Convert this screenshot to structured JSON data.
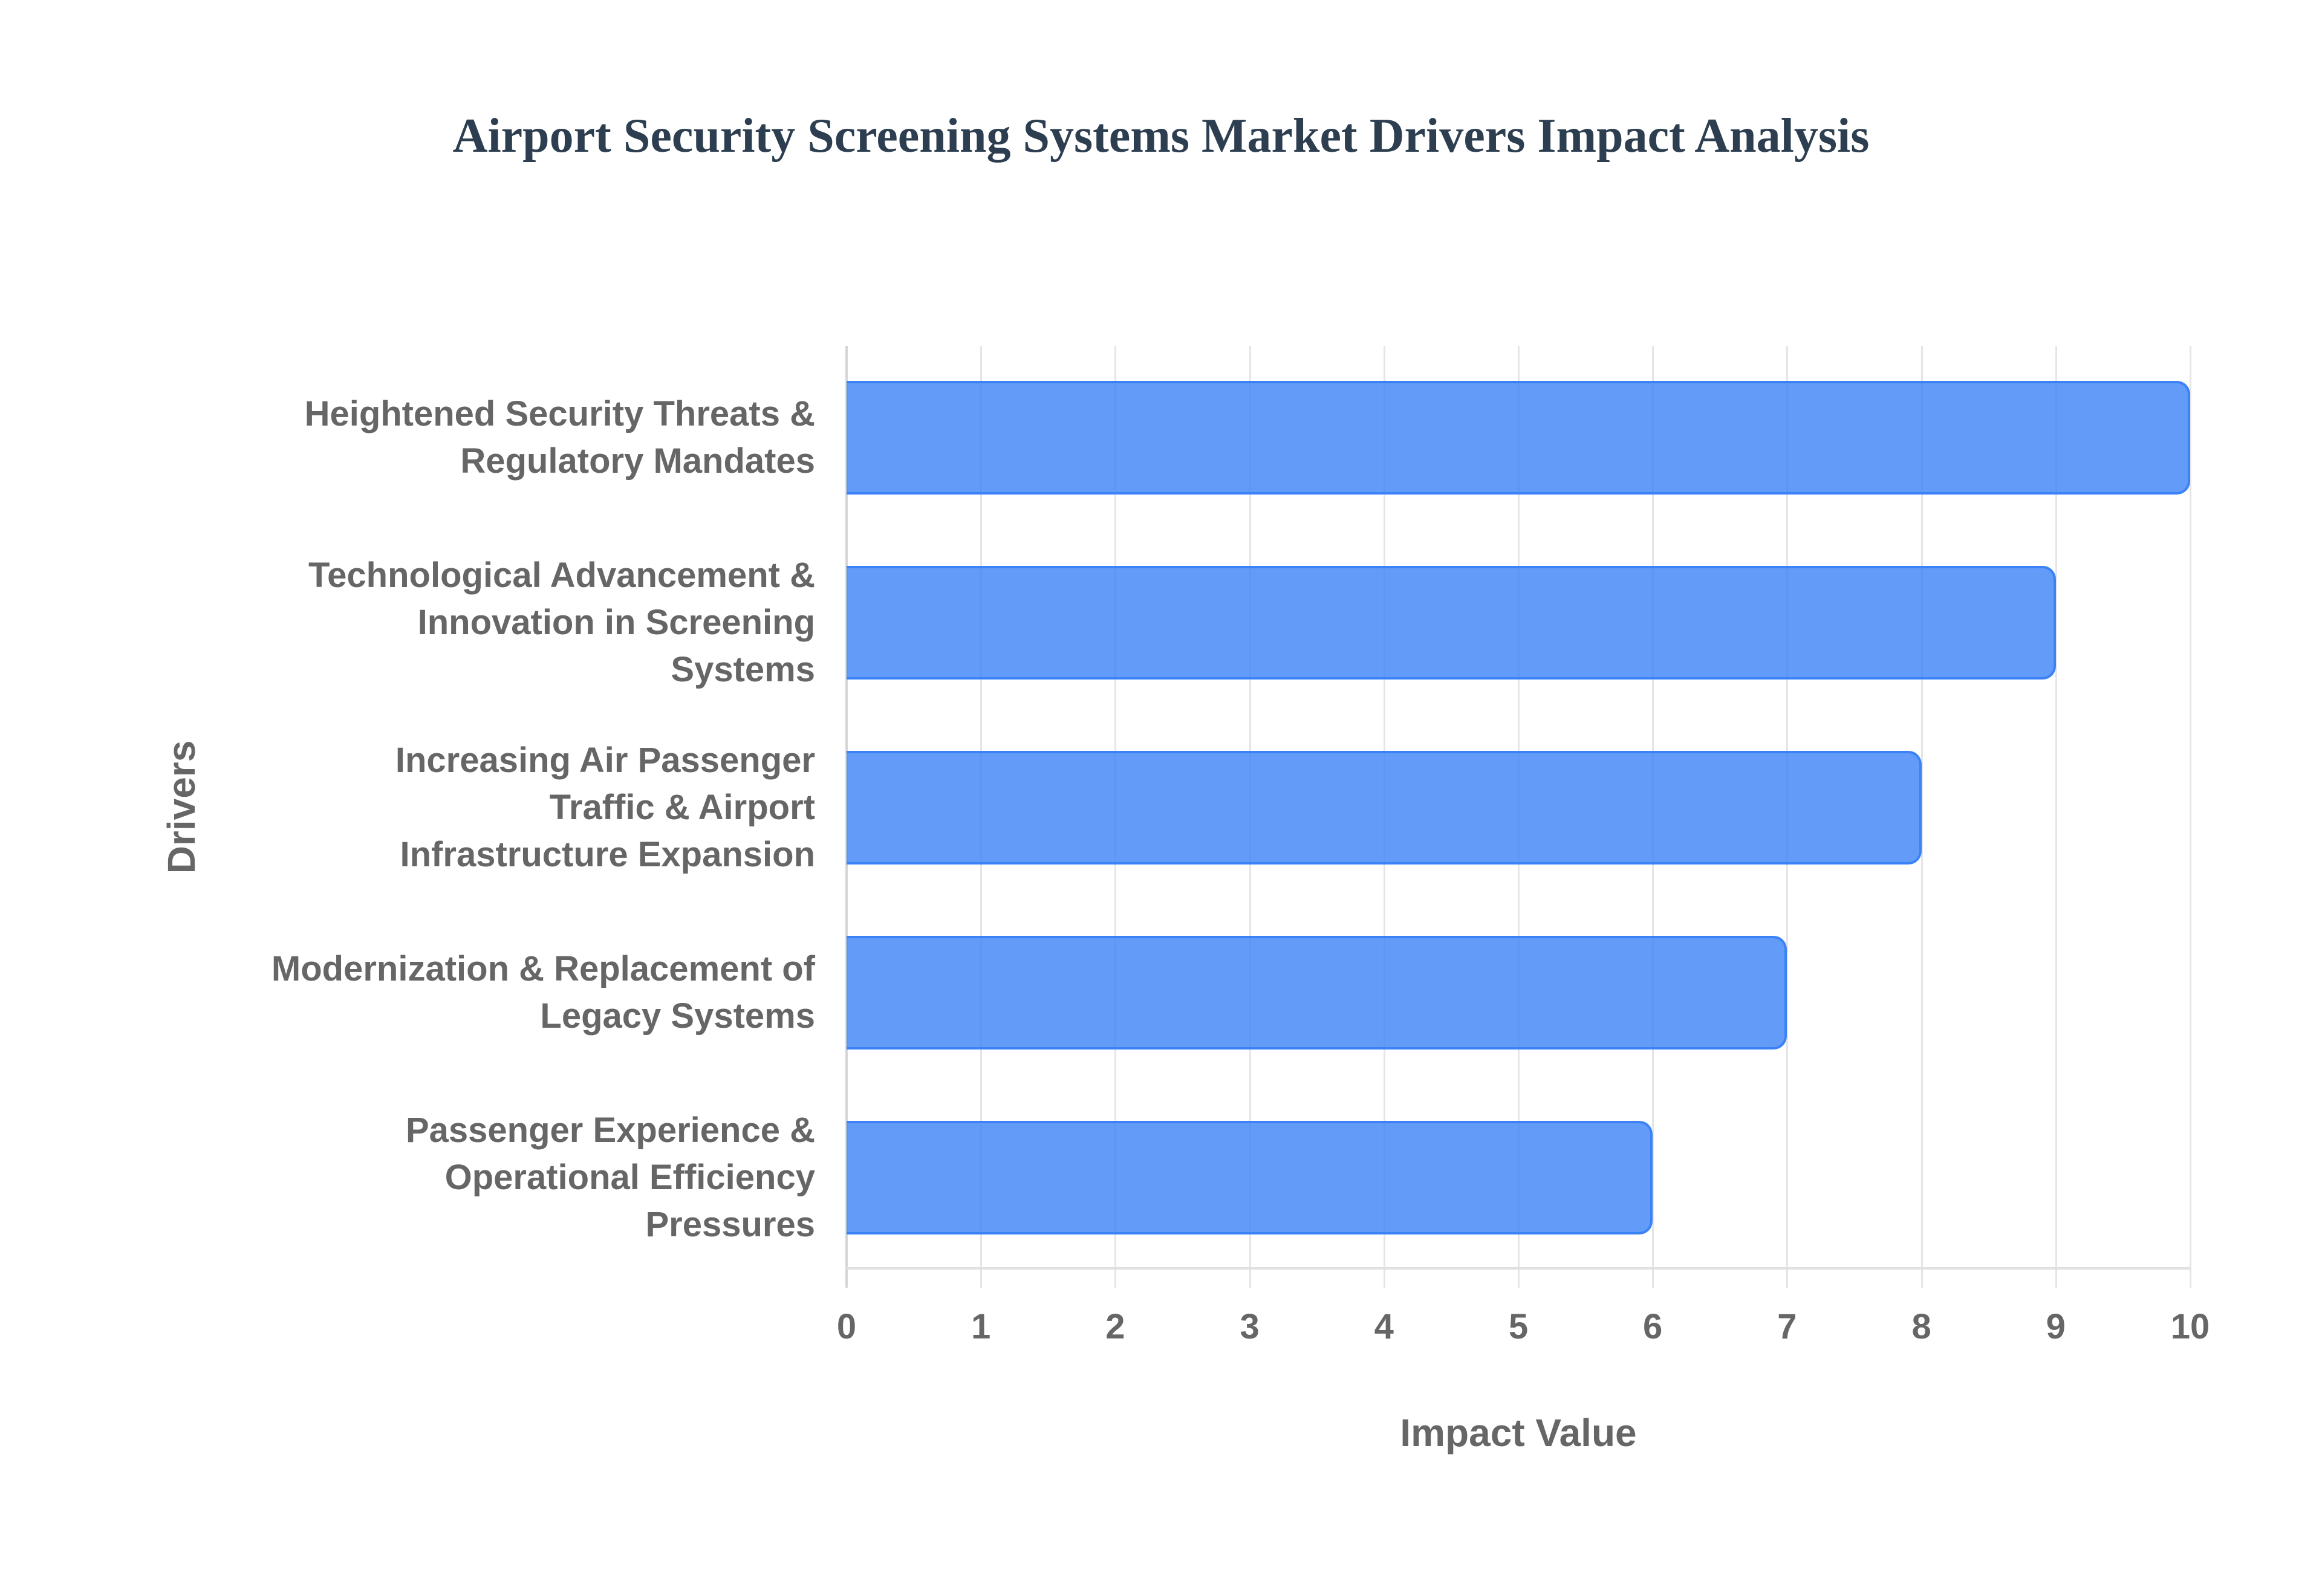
{
  "chart_data": {
    "type": "bar",
    "orientation": "horizontal",
    "title": "Airport Security Screening Systems Market Drivers Impact Analysis",
    "xlabel": "Impact Value",
    "ylabel": "Drivers",
    "categories": [
      "Heightened Security Threats & Regulatory Mandates",
      "Technological Advancement & Innovation in Screening Systems",
      "Increasing Air Passenger Traffic & Airport Infrastructure Expansion",
      "Modernization & Replacement of Legacy Systems",
      "Passenger Experience & Operational Efficiency Pressures"
    ],
    "category_lines": [
      [
        "Heightened Security Threats &",
        "Regulatory Mandates"
      ],
      [
        "Technological Advancement &",
        "Innovation in Screening",
        "Systems"
      ],
      [
        "Increasing Air Passenger",
        "Traffic & Airport",
        "Infrastructure Expansion"
      ],
      [
        "Modernization & Replacement of",
        "Legacy Systems"
      ],
      [
        "Passenger Experience &",
        "Operational Efficiency",
        "Pressures"
      ]
    ],
    "values": [
      10,
      9,
      8,
      7,
      6
    ],
    "xlim": [
      0,
      10
    ],
    "xticks": [
      "0",
      "1",
      "2",
      "3",
      "4",
      "5",
      "6",
      "7",
      "8",
      "9",
      "10"
    ],
    "grid": true,
    "legend": null,
    "colors": {
      "bar_fill": "#6199f5",
      "bar_border": "#3b82f6",
      "title": "#2c3e50",
      "axis_text": "#666666",
      "grid": "#e5e5e5"
    }
  }
}
